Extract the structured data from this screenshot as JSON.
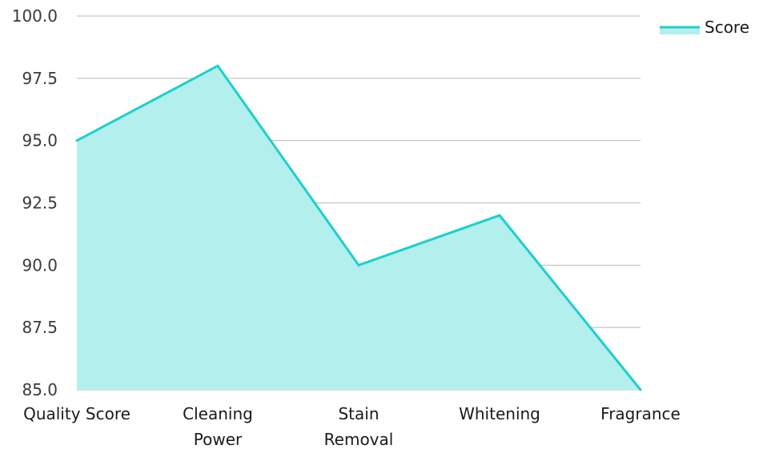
{
  "chart_data": {
    "type": "area",
    "categories": [
      "Quality Score",
      "Cleaning Power",
      "Stain Removal",
      "Whitening",
      "Fragrance"
    ],
    "series": [
      {
        "name": "Score",
        "values": [
          95,
          98,
          90,
          92,
          85
        ]
      }
    ],
    "ylim": [
      85,
      100
    ],
    "yticks": [
      "100.0",
      "97.5",
      "95.0",
      "92.5",
      "90.0",
      "87.5",
      "85.0"
    ],
    "grid": true,
    "legend": "top-right",
    "colors": {
      "line": "#1ecfcc",
      "fill": "#b2efed",
      "grid": "#b8b8b8"
    }
  }
}
